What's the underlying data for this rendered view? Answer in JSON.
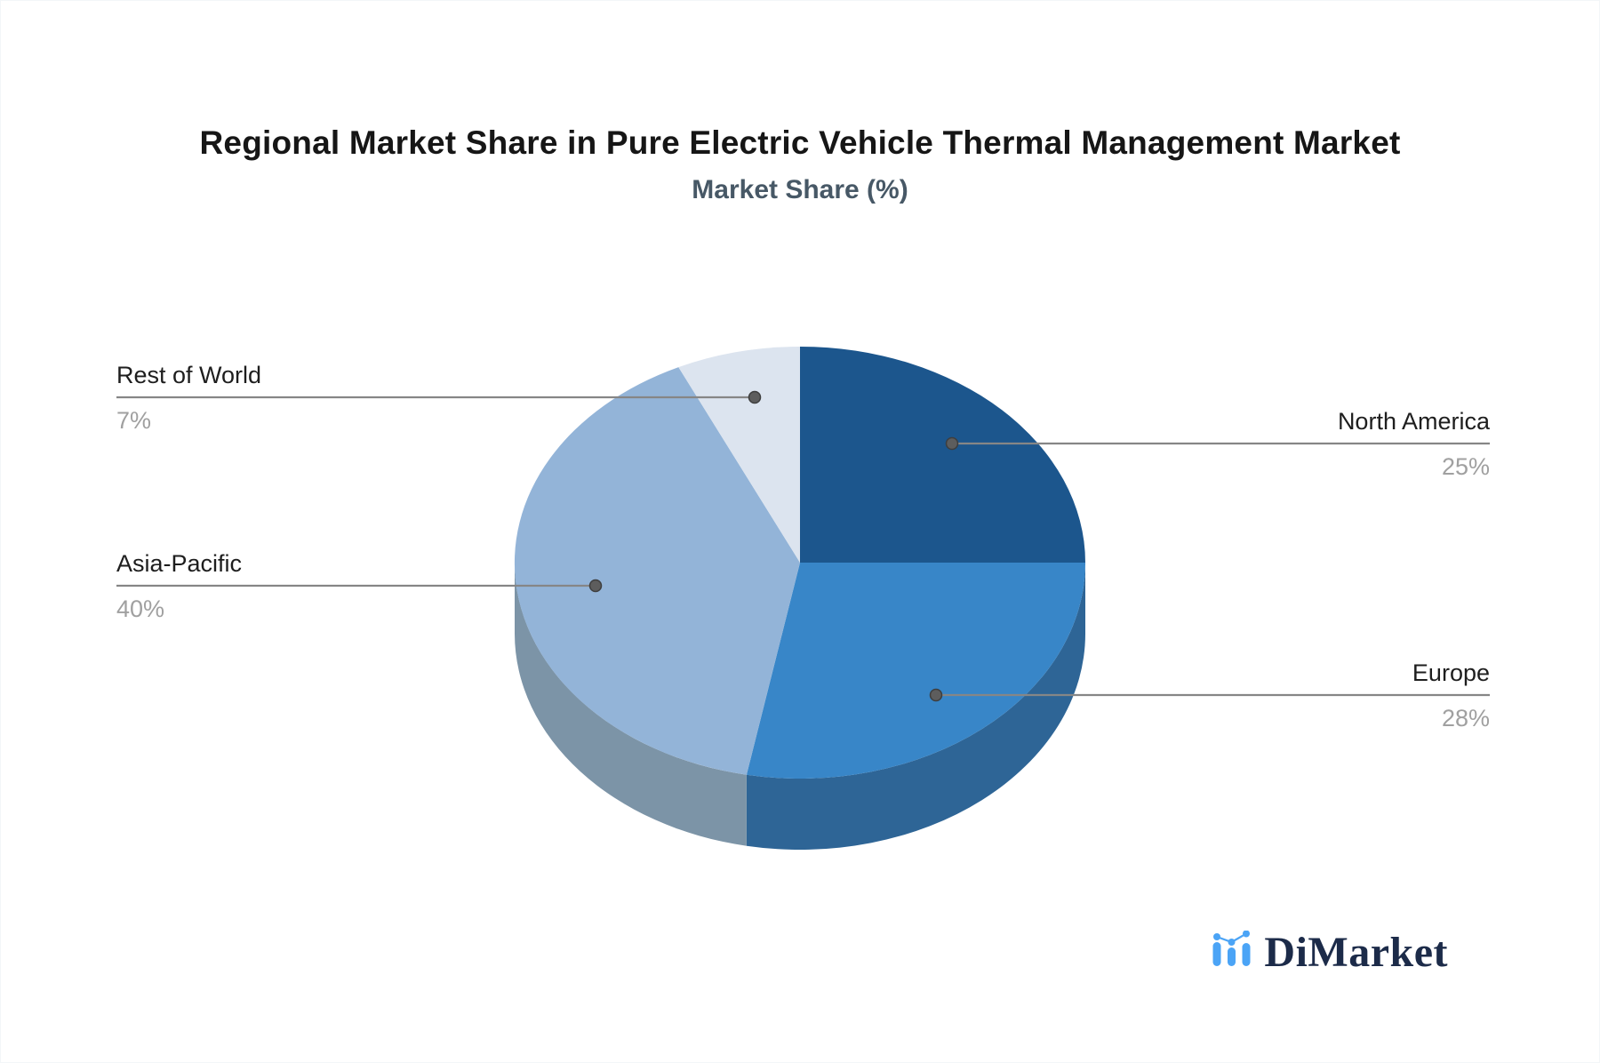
{
  "header": {
    "title": "Regional Market Share in Pure Electric Vehicle Thermal Management Market",
    "subtitle": "Market Share (%)"
  },
  "chart_data": {
    "type": "pie",
    "title": "Regional Market Share in Pure Electric Vehicle Thermal Management Market",
    "subtitle": "Market Share (%)",
    "unit": "percent",
    "style": "3d-pie",
    "start_angle_deg": 90,
    "direction": "clockwise",
    "legend_position": "callout-labels",
    "segments": [
      {
        "label": "North America",
        "value": 25,
        "value_text": "25%",
        "color": "#1c568d",
        "side_color": "#184a7b",
        "callout_side": "right"
      },
      {
        "label": "Europe",
        "value": 28,
        "value_text": "28%",
        "color": "#3886c8",
        "side_color": "#2e6596",
        "callout_side": "right"
      },
      {
        "label": "Asia-Pacific",
        "value": 40,
        "value_text": "40%",
        "color": "#93b4d8",
        "side_color": "#7c94a7",
        "callout_side": "left"
      },
      {
        "label": "Rest of World",
        "value": 7,
        "value_text": "7%",
        "color": "#dce4ef",
        "side_color": "#bac6d6",
        "callout_side": "left"
      }
    ]
  },
  "callouts": {
    "rest_of_world": {
      "label": "Rest of World",
      "value": "7%"
    },
    "north_america": {
      "label": "North America",
      "value": "25%"
    },
    "asia_pacific": {
      "label": "Asia-Pacific",
      "value": "40%"
    },
    "europe": {
      "label": "Europe",
      "value": "28%"
    }
  },
  "branding": {
    "logo_text": "DiMarket",
    "logo_icon": "bar-line-chart-icon",
    "icon_color": "#4ba4f6",
    "text_color": "#1c2b49"
  },
  "colors": {
    "background": "#ffffff",
    "title": "#161616",
    "subtitle": "#475866",
    "callout_label": "#1e1e1e",
    "callout_value": "#a0a0a0",
    "leader_line": "#868686",
    "leader_dot": "#5d5d5d"
  }
}
